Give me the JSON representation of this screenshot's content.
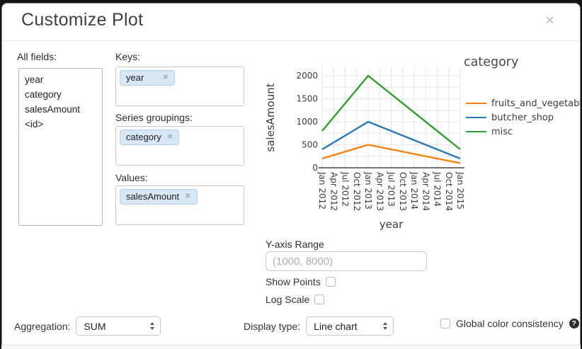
{
  "dialog": {
    "title": "Customize Plot",
    "close_icon": "✕"
  },
  "fields_panel": {
    "label": "All fields:",
    "items": [
      "year",
      "category",
      "salesAmount",
      "<id>"
    ]
  },
  "keys_panel": {
    "label": "Keys:",
    "tags": [
      {
        "label": "year",
        "remove_icon": "✕"
      }
    ]
  },
  "series_panel": {
    "label": "Series groupings:",
    "tags": [
      {
        "label": "category",
        "remove_icon": "✕"
      }
    ]
  },
  "values_panel": {
    "label": "Values:",
    "tags": [
      {
        "label": "salesAmount",
        "remove_icon": "✕"
      }
    ]
  },
  "chart_data": {
    "type": "line",
    "legend_title": "category",
    "xlabel": "year",
    "ylabel": "salesAmount",
    "x_ticks": [
      "Jan 2012",
      "Apr 2012",
      "Jul 2012",
      "Oct 2012",
      "Jan 2013",
      "Apr 2013",
      "Jul 2013",
      "Oct 2013",
      "Jan 2014",
      "Apr 2014",
      "Jul 2014",
      "Oct 2014",
      "Jan 2015"
    ],
    "x": [
      "Jan 2012",
      "Jan 2013",
      "Jan 2015"
    ],
    "series": [
      {
        "name": "fruits_and_vegetables",
        "color": "#ff7f0e",
        "values": [
          200,
          500,
          100
        ]
      },
      {
        "name": "butcher_shop",
        "color": "#2878b8",
        "values": [
          400,
          1000,
          200
        ]
      },
      {
        "name": "misc",
        "color": "#2ca02c",
        "values": [
          800,
          2000,
          400
        ]
      }
    ],
    "ylim": [
      0,
      2000
    ],
    "y_ticks": [
      0,
      500,
      1000,
      1500,
      2000
    ],
    "grid": true,
    "legend_position": "right"
  },
  "controls": {
    "y_axis_range": {
      "label": "Y-axis Range",
      "placeholder": "(1000, 8000)",
      "value": ""
    },
    "show_points": {
      "label": "Show Points",
      "checked": false
    },
    "log_scale": {
      "label": "Log Scale",
      "checked": false
    },
    "aggregation": {
      "label": "Aggregation:",
      "value": "SUM"
    },
    "display_type": {
      "label": "Display type:",
      "value": "Line chart"
    },
    "global_color_consistency": {
      "label": "Global color consistency",
      "checked": false,
      "help_icon": "?"
    }
  }
}
